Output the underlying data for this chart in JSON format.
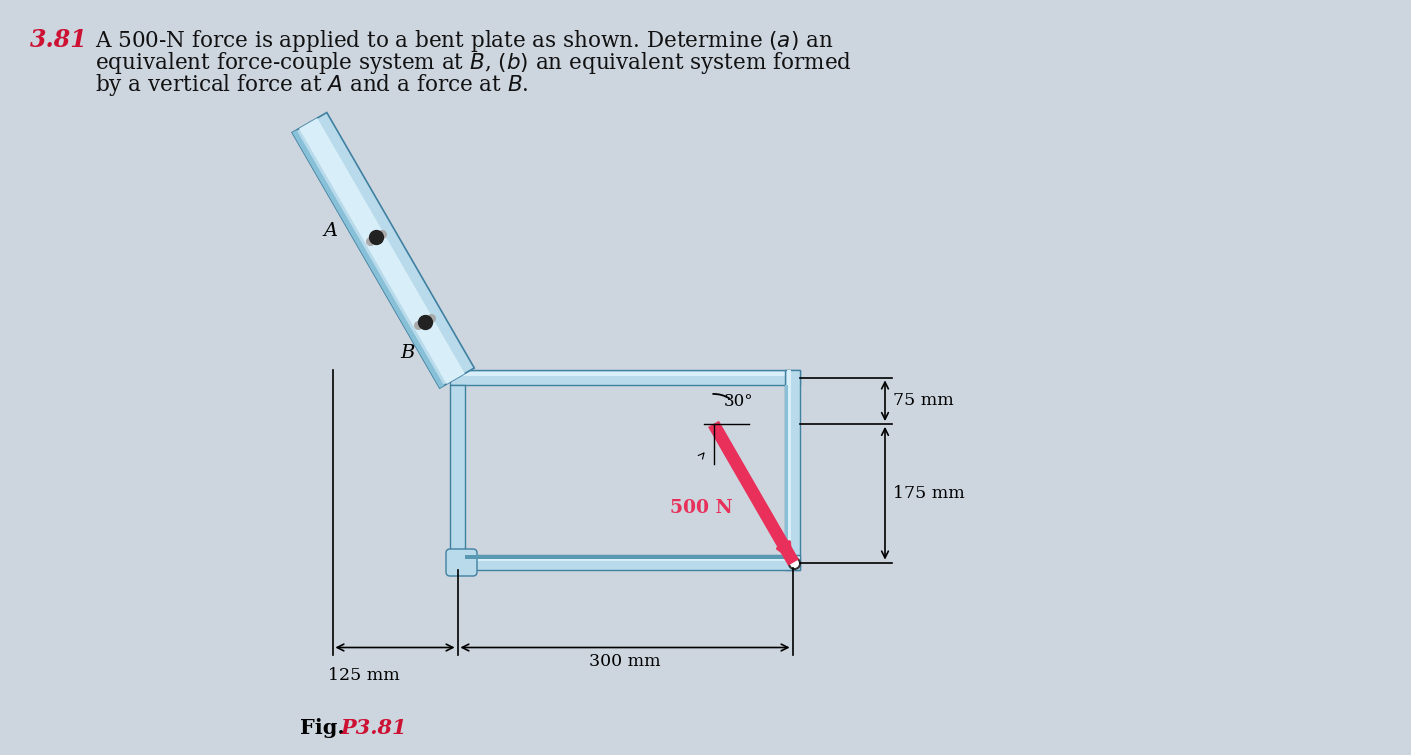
{
  "bg_color": "#cdd5df",
  "title_num": "3.81",
  "title_num_color": "#cc1133",
  "fig_label_text": "Fig. ",
  "fig_label_p": "P3.81",
  "fig_label_color": "#cc1133",
  "force_color": "#e8305a",
  "force_label": "500 N",
  "angle_label": "30°",
  "dim_75": "75 mm",
  "dim_175": "175 mm",
  "dim_300": "300 mm",
  "dim_125": "125 mm",
  "label_A": "A",
  "label_B": "B",
  "plate_light": "#b8daea",
  "plate_mid": "#88c0d8",
  "plate_dark": "#5898b0",
  "plate_edge": "#4080a0",
  "plate_highlight": "#d8eef8",
  "pin_color": "#222222",
  "pin_hole_color": "#aaaaaa"
}
